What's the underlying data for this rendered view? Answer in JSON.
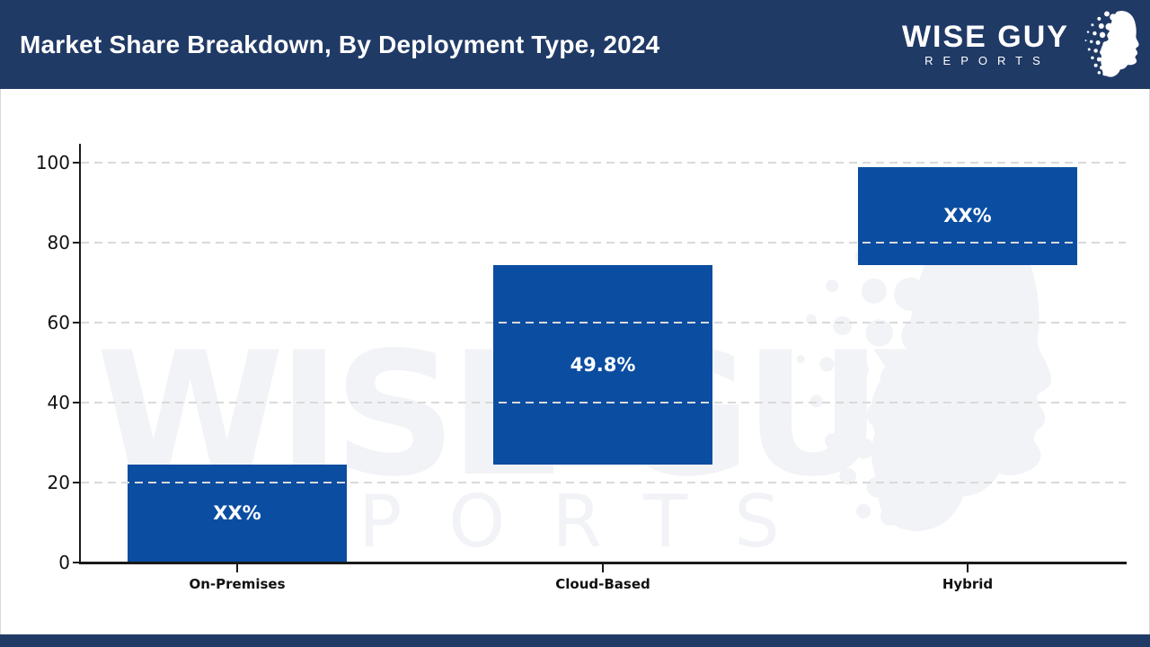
{
  "header": {
    "title": "Market Share Breakdown, By Deployment Type, 2024",
    "bg_color": "#203a66",
    "logo": {
      "line1": "WISE GUY",
      "line2": "REPORTS"
    }
  },
  "watermark": {
    "line1": "WISE GUY",
    "line2": "REPORTS"
  },
  "chart_data": {
    "type": "bar",
    "subtype": "waterfall-stacked-percentage",
    "title": "Market Share Breakdown, By Deployment Type, 2024",
    "categories": [
      "On-Premises",
      "Cloud-Based",
      "Hybrid"
    ],
    "series": [
      {
        "name": "Market Share (%)",
        "segments": [
          {
            "category": "On-Premises",
            "start": 0,
            "end": 24.6,
            "label": "XX%"
          },
          {
            "category": "Cloud-Based",
            "start": 24.6,
            "end": 74.4,
            "label": "49.8%"
          },
          {
            "category": "Hybrid",
            "start": 74.4,
            "end": 98.9,
            "label": "XX%"
          }
        ]
      }
    ],
    "xlabel": "",
    "ylabel": "",
    "yticks": [
      0,
      20,
      40,
      60,
      80,
      100
    ],
    "ylim": [
      0,
      105
    ],
    "grid": "dashed horizontal, drawn above bars",
    "legend": "none",
    "bar_color": "#0b4da1",
    "grid_color": "#d9d9d9",
    "axis_color": "#1a1a1a"
  },
  "footer": {
    "bg_color": "#203a66"
  }
}
